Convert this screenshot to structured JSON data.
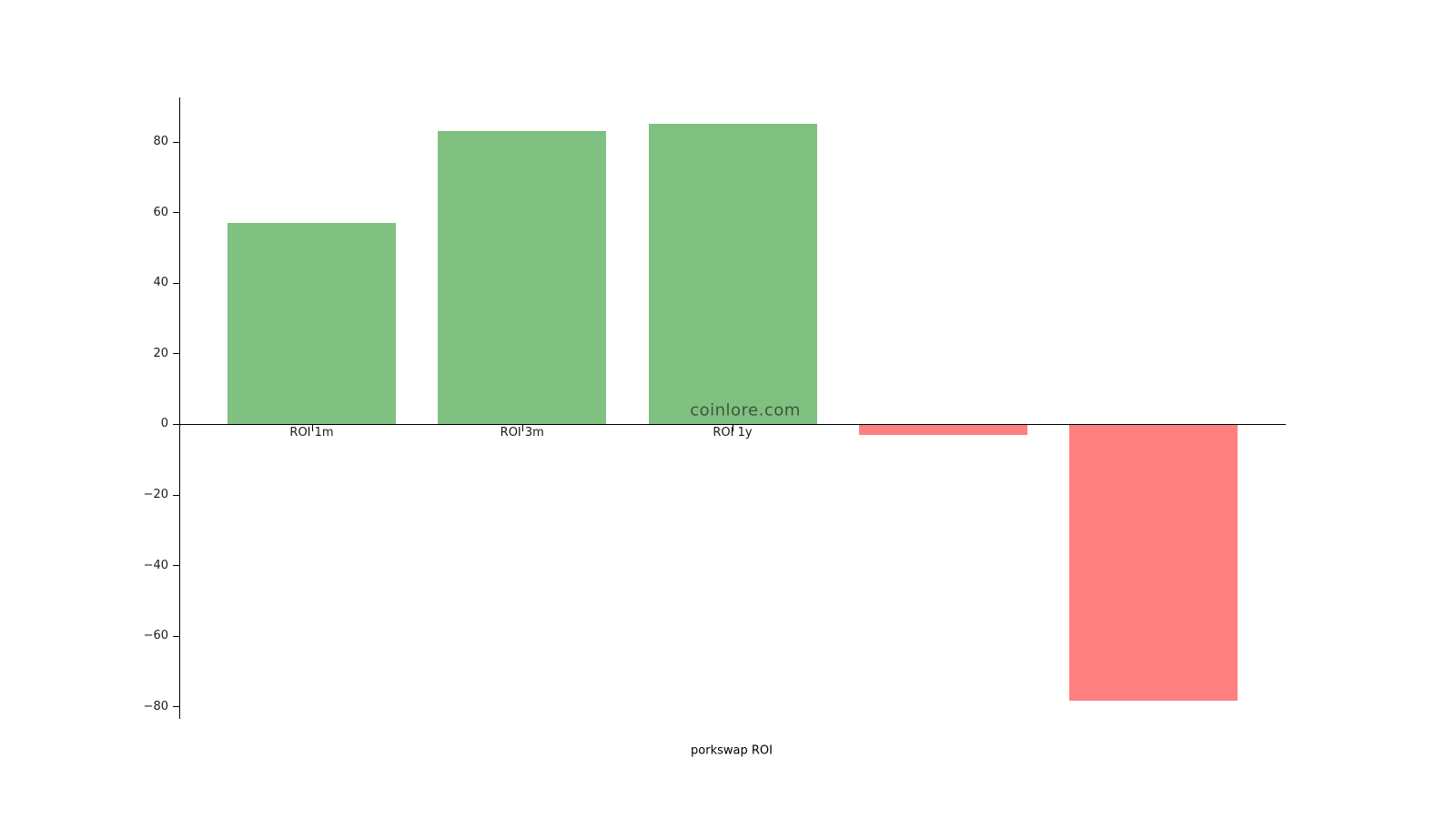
{
  "chart_data": {
    "type": "bar",
    "title": "",
    "xlabel": "porkswap ROI",
    "ylabel": "",
    "watermark": "coinlore.com",
    "categories": [
      "ROI 1m",
      "ROI 3m",
      "ROI 1y",
      "",
      ""
    ],
    "values": [
      57,
      83,
      85,
      -2.8,
      -78
    ],
    "series": [
      {
        "name": "porkswap ROI %",
        "values": [
          57,
          83,
          85,
          -2.8,
          -78
        ]
      }
    ],
    "bar_colors": [
      "#80c080",
      "#80c080",
      "#80c080",
      "#ff8080",
      "#ff8080"
    ],
    "positive_color": "#80c080",
    "negative_color": "#ff8080",
    "axis_color": "#000000",
    "yticks": [
      {
        "v": 80,
        "label": "80"
      },
      {
        "v": 60,
        "label": "60"
      },
      {
        "v": 40,
        "label": "40"
      },
      {
        "v": 20,
        "label": "20"
      },
      {
        "v": 0,
        "label": "0"
      },
      {
        "v": -20,
        "label": "−20"
      },
      {
        "v": -40,
        "label": "−40"
      },
      {
        "v": -60,
        "label": "−60"
      },
      {
        "v": -80,
        "label": "−80"
      }
    ],
    "ylim": [
      -83.5,
      92.5
    ],
    "grid": false,
    "legend_position": "none"
  }
}
